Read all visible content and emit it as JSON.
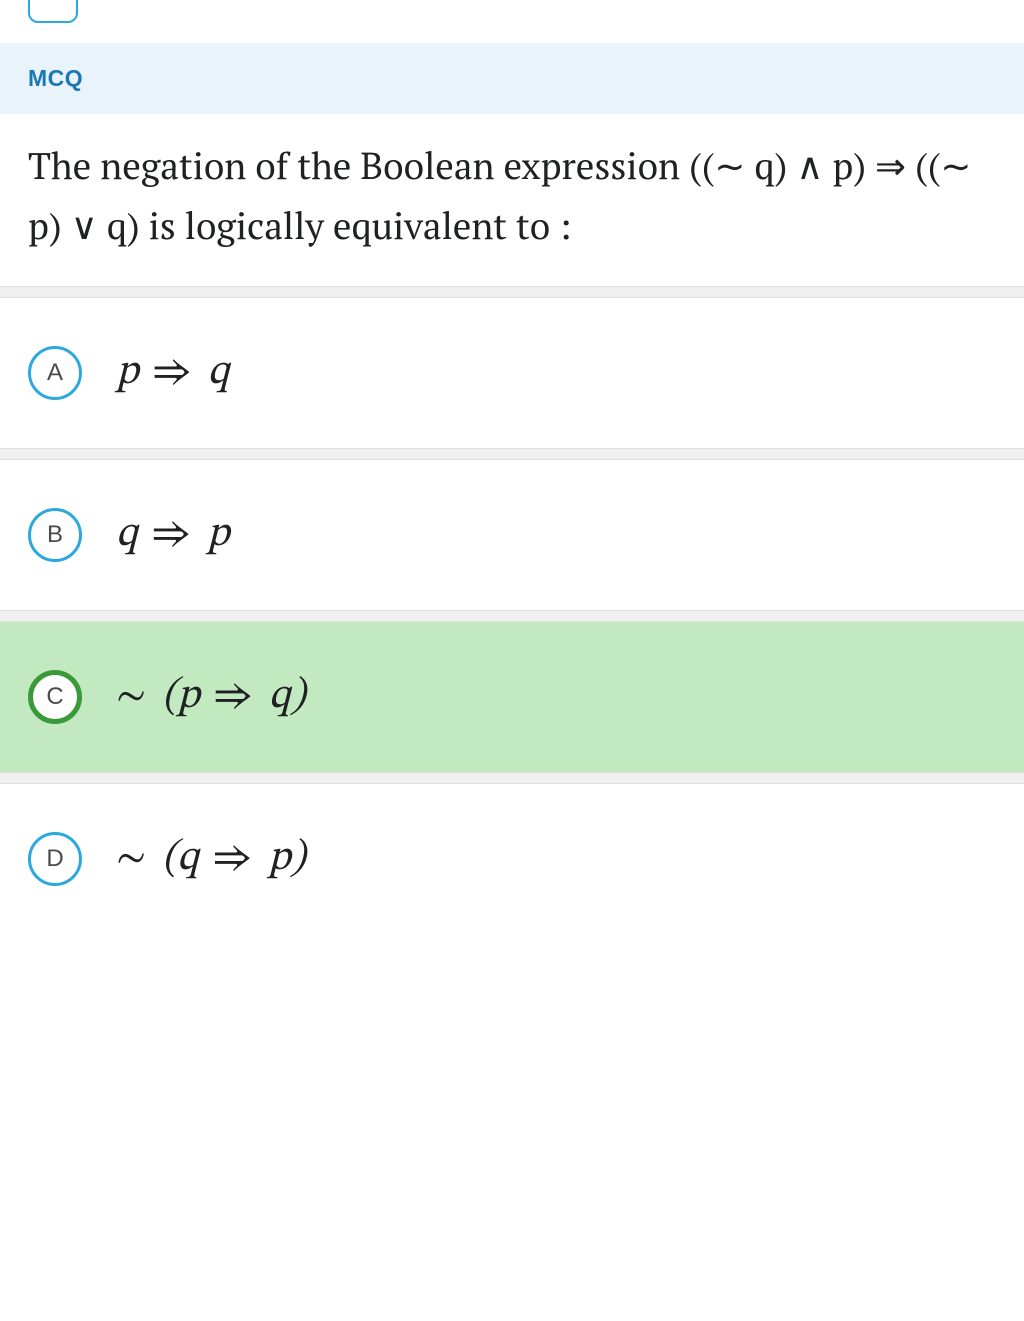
{
  "header": {
    "label": "MCQ",
    "background_color": "#e8f3fb",
    "text_color": "#1a79b5"
  },
  "question": {
    "text": "The negation of the Boolean expression ((∼ q) ∧ p) ⇒ ((∼ p) ∨ q) is logically equivalent to :",
    "fontsize": 37,
    "color": "#202124"
  },
  "options": [
    {
      "letter": "A",
      "content_html": "<i>p</i> <span class=\"imp\">⇒</span> <i>q</i>",
      "correct": false
    },
    {
      "letter": "B",
      "content_html": "<i>q</i> <span class=\"imp\">⇒</span> <i>p</i>",
      "correct": false
    },
    {
      "letter": "C",
      "content_html": "<span class=\"tilde\">∼</span> (<i>p</i> <span class=\"imp\">⇒</span> <i>q</i>)",
      "correct": true
    },
    {
      "letter": "D",
      "content_html": "<span class=\"tilde\">∼</span> (<i>q</i> <span class=\"imp\">⇒</span> <i>p</i>)",
      "correct": false
    }
  ],
  "styling": {
    "option_marker_border_color": "#2ba8e0",
    "option_correct_border_color": "#3a9a3a",
    "option_correct_background": "#c3e9c0",
    "option_fontsize": 42,
    "divider_color": "#f0f0f0"
  }
}
